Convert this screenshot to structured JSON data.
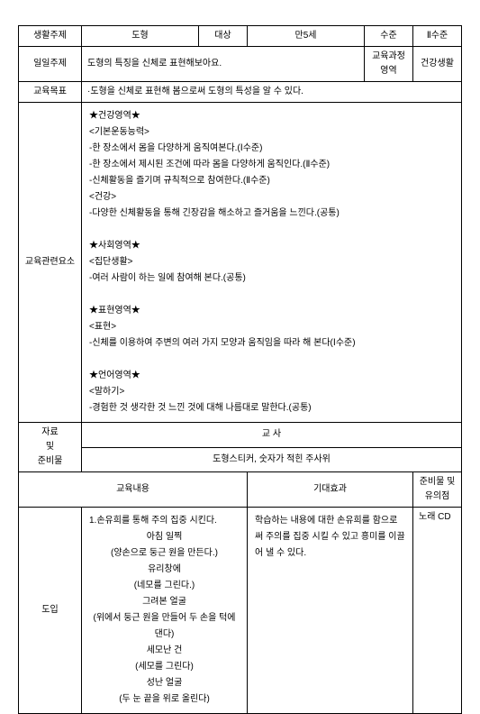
{
  "header": {
    "r1": {
      "k1": "생활주제",
      "v1": "도형",
      "k2": "대상",
      "v2": "만5세",
      "k3": "수준",
      "v3": "Ⅱ수준"
    },
    "r2": {
      "k1": "일일주제",
      "v1": "도형의 특징을 신체로 표현해보아요.",
      "k2": "교육과정영역",
      "v2": "건강생활"
    },
    "r3": {
      "k1": "교육목표",
      "v1": "·도형을 신체로 표현해 봄으로써 도형의 특성을 알 수 있다."
    }
  },
  "related": {
    "label": "교육관련요소",
    "s1": {
      "title": "★건강영역★",
      "sub": "<기본운동능력>",
      "l1": "-한 장소에서 몸을 다양하게 움직여본다.(Ⅰ수준)",
      "l2": "-한 장소에서 제시된 조건에 따라 몸을 다양하게 움직인다.(Ⅱ수준)",
      "l3": "-신체활동을 즐기며 규칙적으로 참여한다.(Ⅱ수준)",
      "sub2": "<건강>",
      "l4": "-다양한 신체활동을 통해 긴장감을 해소하고 즐거움을 느낀다.(공통)"
    },
    "s2": {
      "title": "★사회영역★",
      "sub": "<집단생활>",
      "l1": "-여러 사람이 하는 일에 참여해 본다.(공통)"
    },
    "s3": {
      "title": "★표현영역★",
      "sub": "<표현>",
      "l1": "-신체를 이용하여 주변의 여러 가지 모양과 움직임을 따라 해 본다(Ⅰ수준)"
    },
    "s4": {
      "title": "★언어영역★",
      "sub": "<말하기>",
      "l1": "-경험한 것 생각한 것 느낀 것에 대해 나름대로 말한다.(공통)"
    }
  },
  "materials": {
    "label": "자료\n및\n준비물",
    "teacher_label": "교 사",
    "teacher_items": "도형스티커, 숫자가 적힌 주사위"
  },
  "plan": {
    "h1": "교육내용",
    "h2": "기대효과",
    "h3": "준비물 및\n유의점",
    "stage": "도입",
    "content_title": "1.손유희를 통해 주의 집중 시킨다.",
    "lines": {
      "l1": "아침 일찍",
      "l2": "(양손으로 둥근 원을 만든다.)",
      "l3": "유리창에",
      "l4": "(네모를 그린다.)",
      "l5": "그려본 얼굴",
      "l6": "(위에서 둥근 원을 만들어 두 손을 턱에 댄다)",
      "l7": "세모난 건",
      "l8": "(세모를 그린다)",
      "l9": "성난 얼굴",
      "l10": "(두 눈 끝을 위로 올린다)"
    },
    "effect": "학습하는 내용에 대한 손유희를 함으로써 주의를 집중 시킬 수 있고 흥미를 이끌어 낼 수 있다.",
    "note": "노래 CD"
  }
}
